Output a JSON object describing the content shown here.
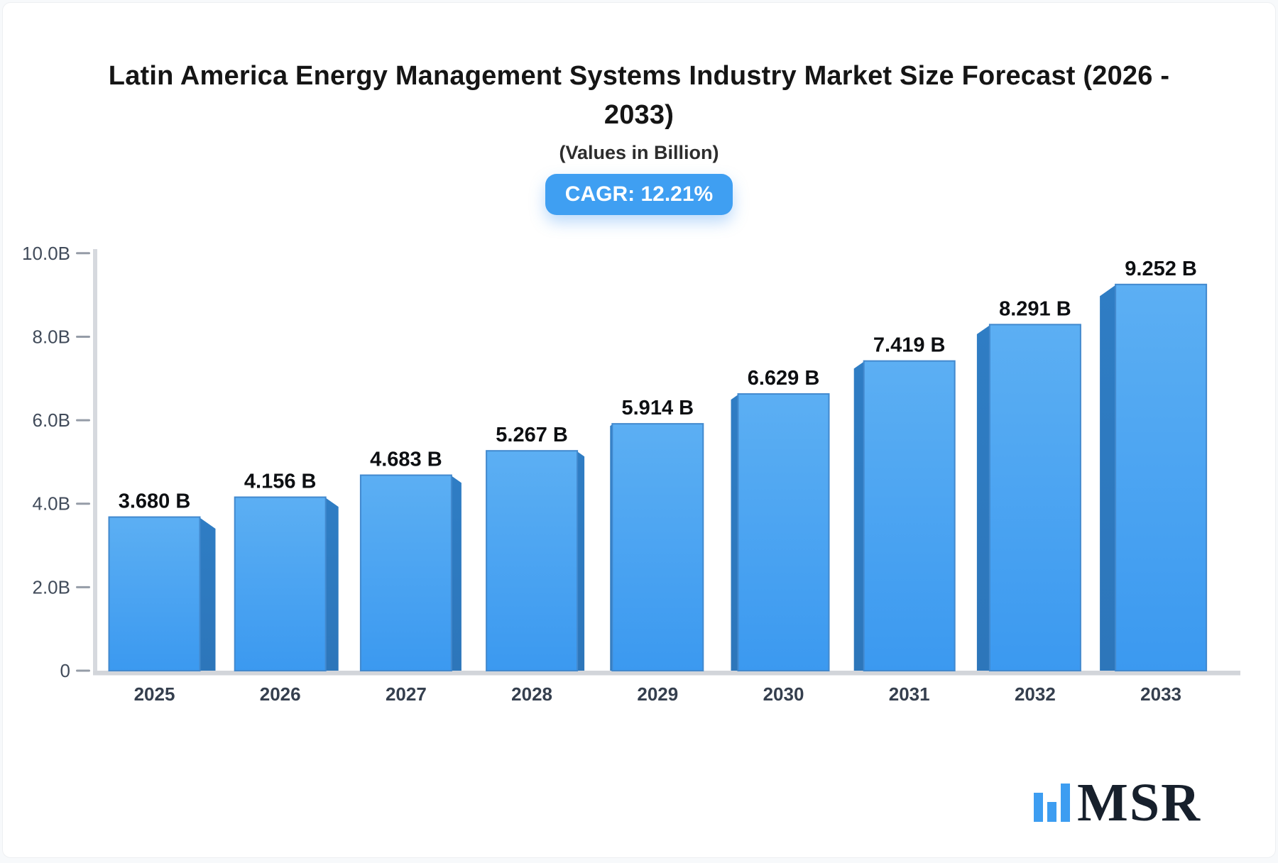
{
  "header": {
    "title": "Latin America Energy Management Systems Industry Market Size Forecast (2026 - 2033)",
    "subtitle": "(Values in Billion)",
    "cagr_label": "CAGR: 12.21%"
  },
  "logo": {
    "text": "MSR",
    "icon": "bar-chart-icon"
  },
  "colors": {
    "accent_blue": "#3f9ff2",
    "bar_face_top": "#5caff3",
    "bar_face_bottom": "#3b99f0",
    "bar_side": "#2d76ba",
    "bar_edge": "#4289ce",
    "axis_line": "#d6d9de",
    "baseline": "#d2d5da",
    "tick_dash": "#959ca7",
    "axis_label": "#414b5a",
    "year_label": "#353f4e",
    "value_label": "#0d0f12",
    "logo_bar_blue": "#3d9df1",
    "logo_text_navy": "#17202c"
  },
  "chart_data": {
    "type": "bar",
    "style": "3d-perspective",
    "title": "Latin America Energy Management Systems Industry Market Size Forecast (2026 - 2033)",
    "subtitle_note": "(Values in Billion)",
    "cagr_percent": 12.21,
    "unit": "Billion",
    "categories": [
      "2025",
      "2026",
      "2027",
      "2028",
      "2029",
      "2030",
      "2031",
      "2032",
      "2033"
    ],
    "values": [
      3.68,
      4.156,
      4.683,
      5.267,
      5.914,
      6.629,
      7.419,
      8.291,
      9.252
    ],
    "value_labels": [
      "3.680 B",
      "4.156 B",
      "4.683 B",
      "5.267 B",
      "5.914 B",
      "6.629 B",
      "7.419 B",
      "8.291 B",
      "9.252 B"
    ],
    "xlabel": "",
    "ylabel": "",
    "ylim": [
      0,
      10
    ],
    "y_tick_interval": 2,
    "y_ticks": [
      0,
      2,
      4,
      6,
      8,
      10
    ],
    "y_tick_labels": [
      "0",
      "2.0B",
      "4.0B",
      "6.0B",
      "8.0B",
      "10.0B"
    ],
    "grid": false,
    "legend": false
  }
}
